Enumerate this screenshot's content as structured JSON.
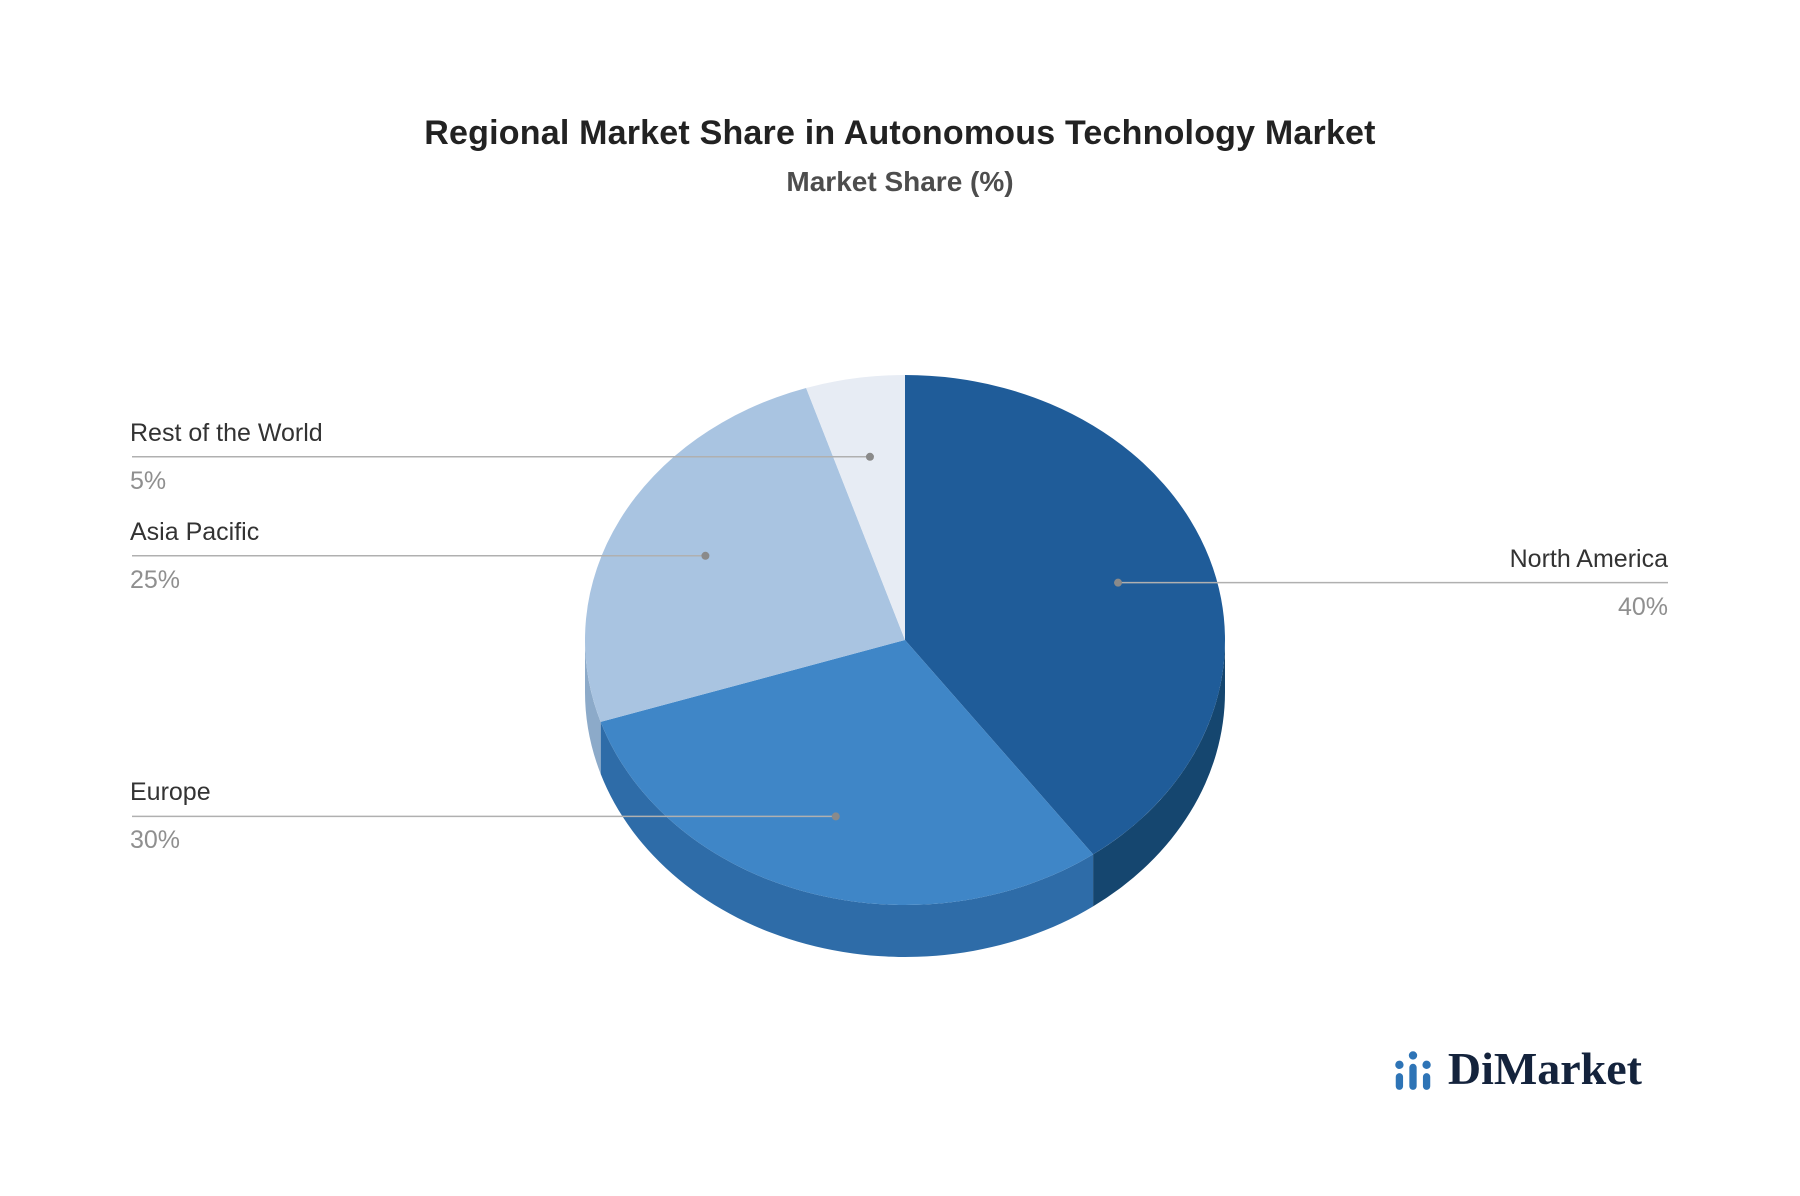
{
  "header": {
    "title": "Regional Market Share in Autonomous Technology Market",
    "subtitle": "Market Share (%)"
  },
  "brand": {
    "name": "DiMarket",
    "icon": "bar-chart-icon",
    "icon_color": "#2e74b6",
    "text_color": "#14233c"
  },
  "chart_data": {
    "type": "pie",
    "style": "3d",
    "title": "Regional Market Share in Autonomous Technology Market",
    "subtitle": "Market Share (%)",
    "labels": [
      "North America",
      "Europe",
      "Asia Pacific",
      "Rest of the World"
    ],
    "values": [
      40,
      30,
      25,
      5
    ],
    "value_labels": [
      "40%",
      "30%",
      "25%",
      "5%"
    ],
    "unit": "%",
    "start_angle_deg": 0,
    "direction": "clockwise",
    "colors": [
      "#1f5c99",
      "#3f86c7",
      "#a9c4e1",
      "#e7ecf4"
    ],
    "depth_colors": [
      "#15466f",
      "#2e6ca8",
      "#8caac9",
      "#c9d4e4"
    ],
    "label_color": "#333333",
    "value_color": "#8f8f8f",
    "leader_line_color": "#b0b0b0",
    "leader_dot_color": "#8a8a8a",
    "legend_position": "none"
  }
}
